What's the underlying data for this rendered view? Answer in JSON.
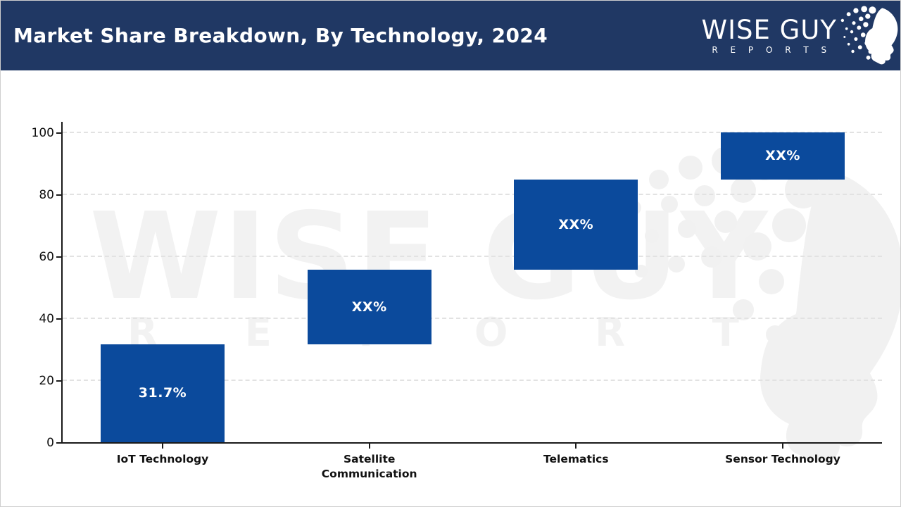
{
  "header": {
    "title": "Market Share Breakdown, By Technology, 2024",
    "logo": {
      "name": "WISE GUY",
      "tagline": "R E P O R T S"
    }
  },
  "watermark": {
    "line1": "WISE GUY",
    "line2": "R E P O R T S"
  },
  "colors": {
    "header_bg": "#203864",
    "bar": "#0B4A9C",
    "grid": "#e2e2e2",
    "axis": "#1a1a1a",
    "value_label": "#ffffff"
  },
  "chart_data": {
    "type": "bar",
    "subtype": "waterfall",
    "title": "Market Share Breakdown, By Technology, 2024",
    "categories": [
      "IoT Technology",
      "Satellite\nCommunication",
      "Telematics",
      "Sensor Technology"
    ],
    "series": [
      {
        "name": "Market share (%)",
        "segments": [
          {
            "category": "IoT Technology",
            "start": 0,
            "end": 31.7,
            "label": "31.7%"
          },
          {
            "category": "Satellite Communication",
            "start": 31.7,
            "end": 55.7,
            "label": "XX%"
          },
          {
            "category": "Telematics",
            "start": 55.7,
            "end": 84.8,
            "label": "XX%"
          },
          {
            "category": "Sensor Technology",
            "start": 84.8,
            "end": 100,
            "label": "XX%"
          }
        ]
      }
    ],
    "xlabel": "",
    "ylabel": "",
    "yticks": [
      0,
      20,
      40,
      60,
      80,
      100
    ],
    "ylim": [
      0,
      103.5
    ],
    "grid": true,
    "grid_style": "dashed",
    "legend": "none",
    "bar_color": "#0B4A9C",
    "value_label_color": "#ffffff"
  }
}
